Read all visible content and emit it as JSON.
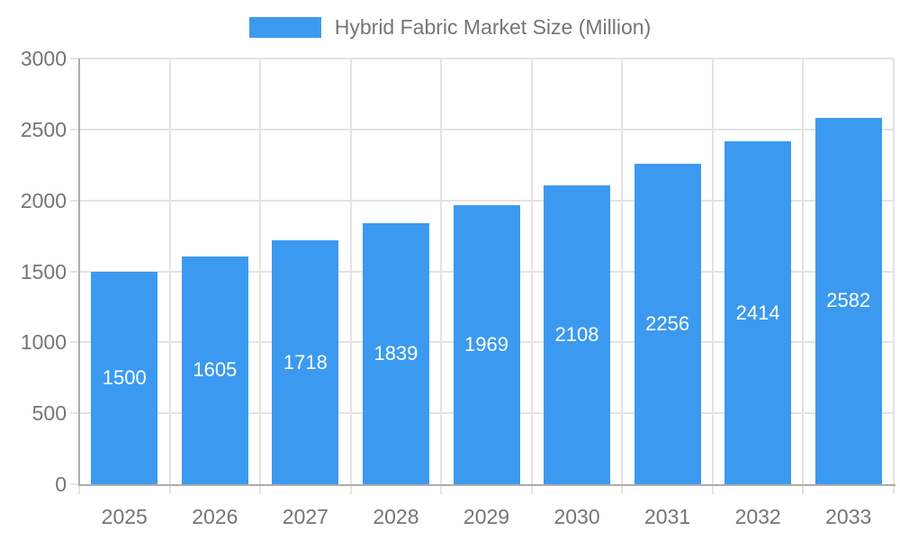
{
  "chart_data": {
    "type": "bar",
    "series_name": "Hybrid Fabric Market Size (Million)",
    "categories": [
      "2025",
      "2026",
      "2027",
      "2028",
      "2029",
      "2030",
      "2031",
      "2032",
      "2033"
    ],
    "values": [
      1500,
      1605,
      1718,
      1839,
      1969,
      2108,
      2256,
      2414,
      2582
    ],
    "ylim": [
      0,
      3000
    ],
    "yticks": [
      0,
      500,
      1000,
      1500,
      2000,
      2500,
      3000
    ],
    "grid": true,
    "legend_position": "top-center",
    "value_label_position": "inside-center",
    "colors": {
      "bar": "#3B9AEF",
      "value_label": "#FFFFFF",
      "axis_text": "#757575",
      "gridline": "#E3E3E3",
      "axis_line": "#ACACAC",
      "background": "#FFFFFF"
    }
  }
}
